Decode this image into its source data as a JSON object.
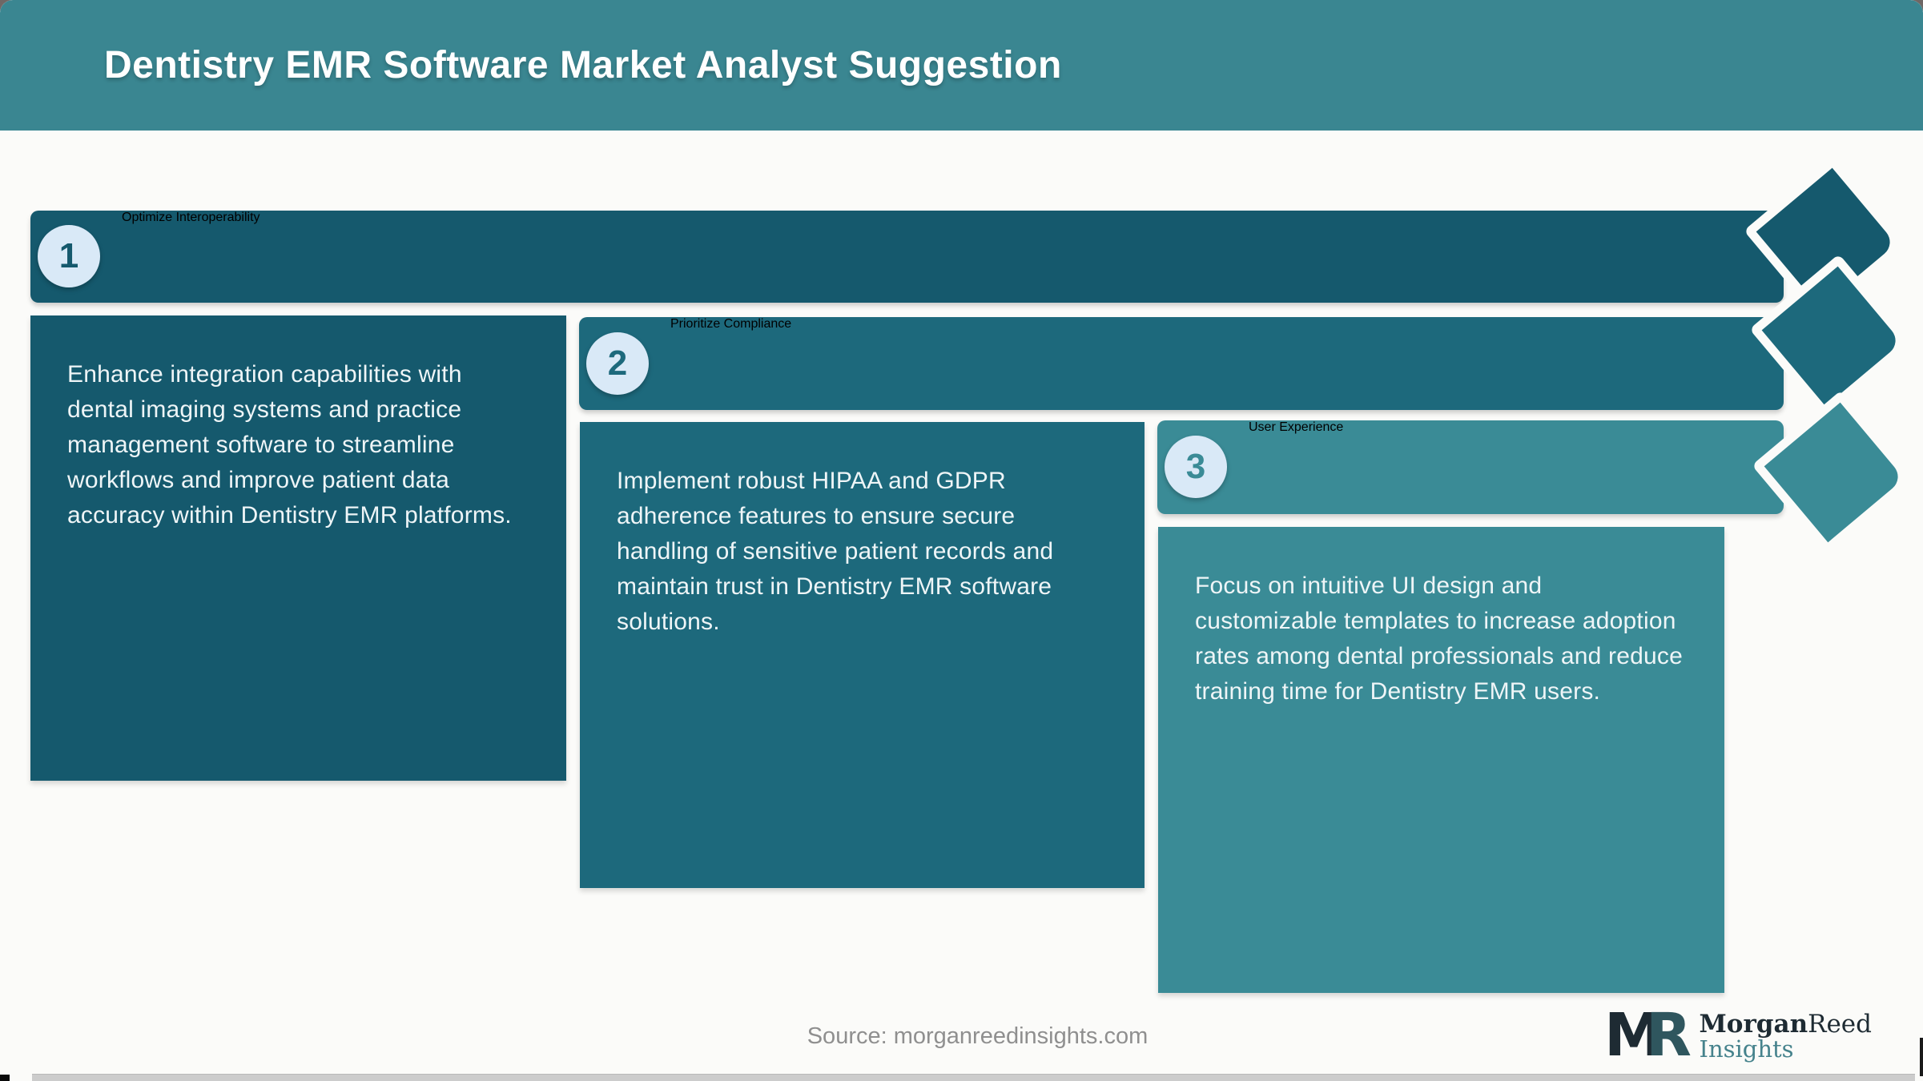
{
  "header": {
    "title": "Dentistry EMR Software Market Analyst Suggestion",
    "bg": "#3a8691"
  },
  "steps": [
    {
      "number": "1",
      "title": "Optimize Interoperability",
      "description": "Enhance integration capabilities with dental imaging systems and practice management software to streamline workflows and improve patient data accuracy within Dentistry EMR platforms.",
      "color": "#15596d"
    },
    {
      "number": "2",
      "title": "Prioritize Compliance",
      "description": "Implement robust HIPAA and GDPR adherence features to ensure secure handling of sensitive patient records and maintain trust in Dentistry EMR software solutions.",
      "color": "#1d697c"
    },
    {
      "number": "3",
      "title": "User Experience",
      "description": "Focus on intuitive UI design and customizable templates to increase adoption rates among dental professionals and reduce training time for Dentistry EMR users.",
      "color": "#3a8b96"
    }
  ],
  "footer": {
    "source": "Source: morganreedinsights.com",
    "logo": {
      "monogram_m": "M",
      "monogram_r": "R",
      "name_bold": "Morgan",
      "name_regular": "Reed",
      "subtitle": "Insights"
    }
  },
  "colors": {
    "circle_bg": "#d9e9f7",
    "background": "#fbfbf9",
    "outside": "#6f6765",
    "source_text": "#8f8f8f",
    "logo_dark": "#1e2b33",
    "logo_teal": "#2f565e",
    "logo_subtitle": "#45828c"
  }
}
